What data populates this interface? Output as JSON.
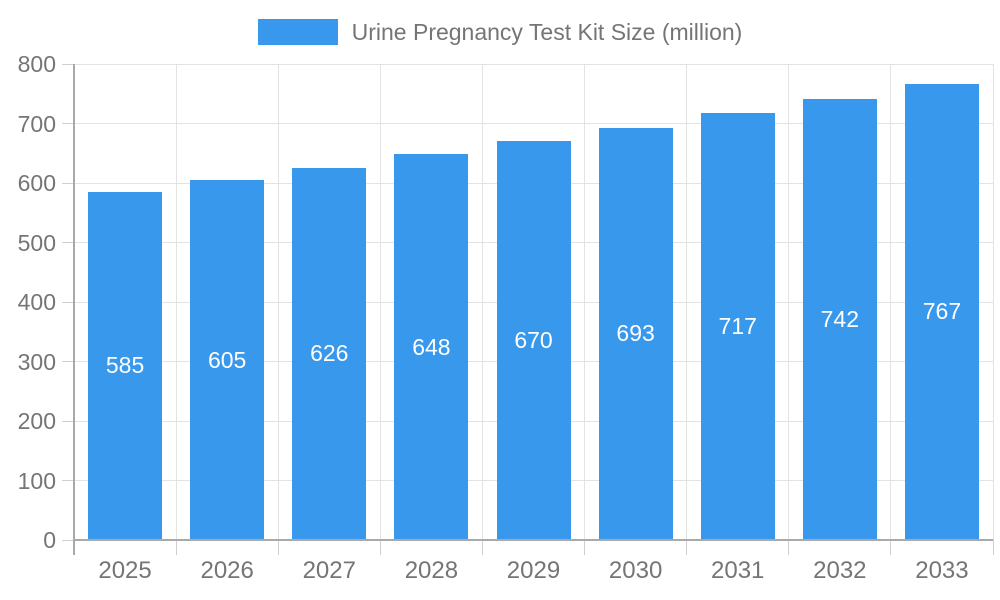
{
  "chart_data": {
    "type": "bar",
    "legend_label": "Urine Pregnancy Test Kit Size (million)",
    "categories": [
      "2025",
      "2026",
      "2027",
      "2028",
      "2029",
      "2030",
      "2031",
      "2032",
      "2033"
    ],
    "values": [
      585,
      605,
      626,
      648,
      670,
      693,
      717,
      742,
      767
    ],
    "title": "Urine Pregnancy Test Kit Size (million)",
    "xlabel": "",
    "ylabel": "",
    "ylim": [
      0,
      800
    ],
    "yticks": [
      0,
      100,
      200,
      300,
      400,
      500,
      600,
      700,
      800
    ],
    "grid": true,
    "legend_position": "top-center",
    "data_labels": true,
    "colors": {
      "bar": "#3898EC",
      "axis_text": "#757575",
      "value_label": "#FFFFFF",
      "gridline": "#E3E3E3",
      "axis_line": "#A9A9A9",
      "tick": "#CFCFCF"
    }
  }
}
